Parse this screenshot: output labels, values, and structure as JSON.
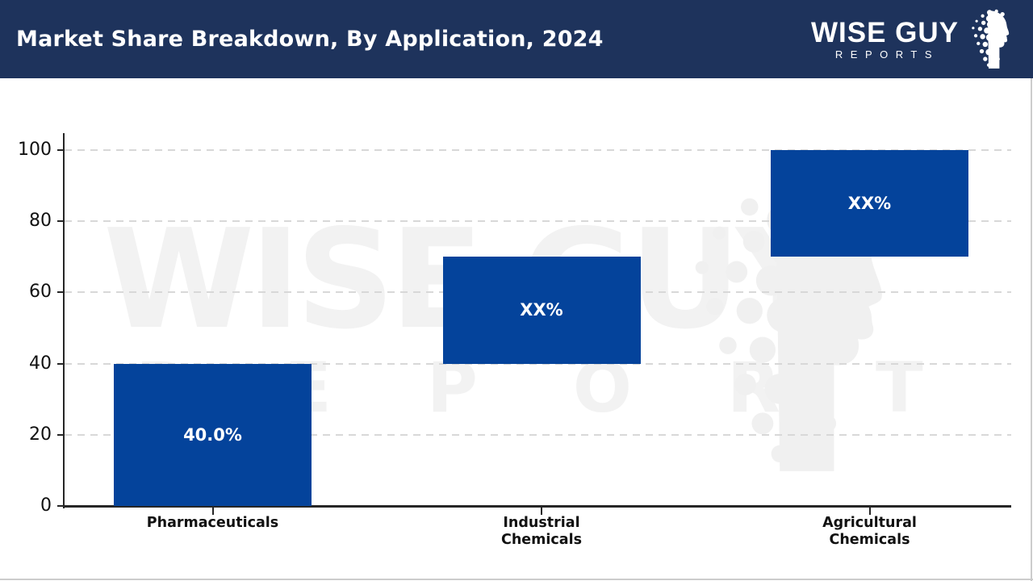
{
  "header": {
    "title": "Market Share Breakdown, By Application, 2024",
    "bg_color": "#1e335c",
    "logo_line1": "WISE GUY",
    "logo_line2": "REPORTS"
  },
  "watermark": {
    "line1": "WISE GUY",
    "line2": "R E P O R T S"
  },
  "chart_data": {
    "type": "bar",
    "variant": "floating-segment-stacked (market share breakdown)",
    "title": "Market Share Breakdown, By Application, 2024",
    "categories": [
      "Pharmaceuticals",
      "Industrial Chemicals",
      "Agricultural Chemicals"
    ],
    "category_label_lines": [
      [
        "Pharmaceuticals"
      ],
      [
        "Industrial",
        "Chemicals"
      ],
      [
        "Agricultural",
        "Chemicals"
      ]
    ],
    "bars": [
      {
        "category": "Pharmaceuticals",
        "from": 0,
        "to": 40,
        "label": "40.0%"
      },
      {
        "category": "Industrial Chemicals",
        "from": 40,
        "to": 70,
        "label": "XX%"
      },
      {
        "category": "Agricultural Chemicals",
        "from": 70,
        "to": 100,
        "label": "XX%"
      }
    ],
    "y_ticks": [
      0,
      20,
      40,
      60,
      80,
      100
    ],
    "ylim": [
      0,
      100
    ],
    "grid": "horizontal dashed, behind bars",
    "legend": "none",
    "bar_color": "#04439b",
    "grid_color": "#d8d8d8",
    "axis_color": "#262626",
    "tick_label_color": "#111111"
  }
}
